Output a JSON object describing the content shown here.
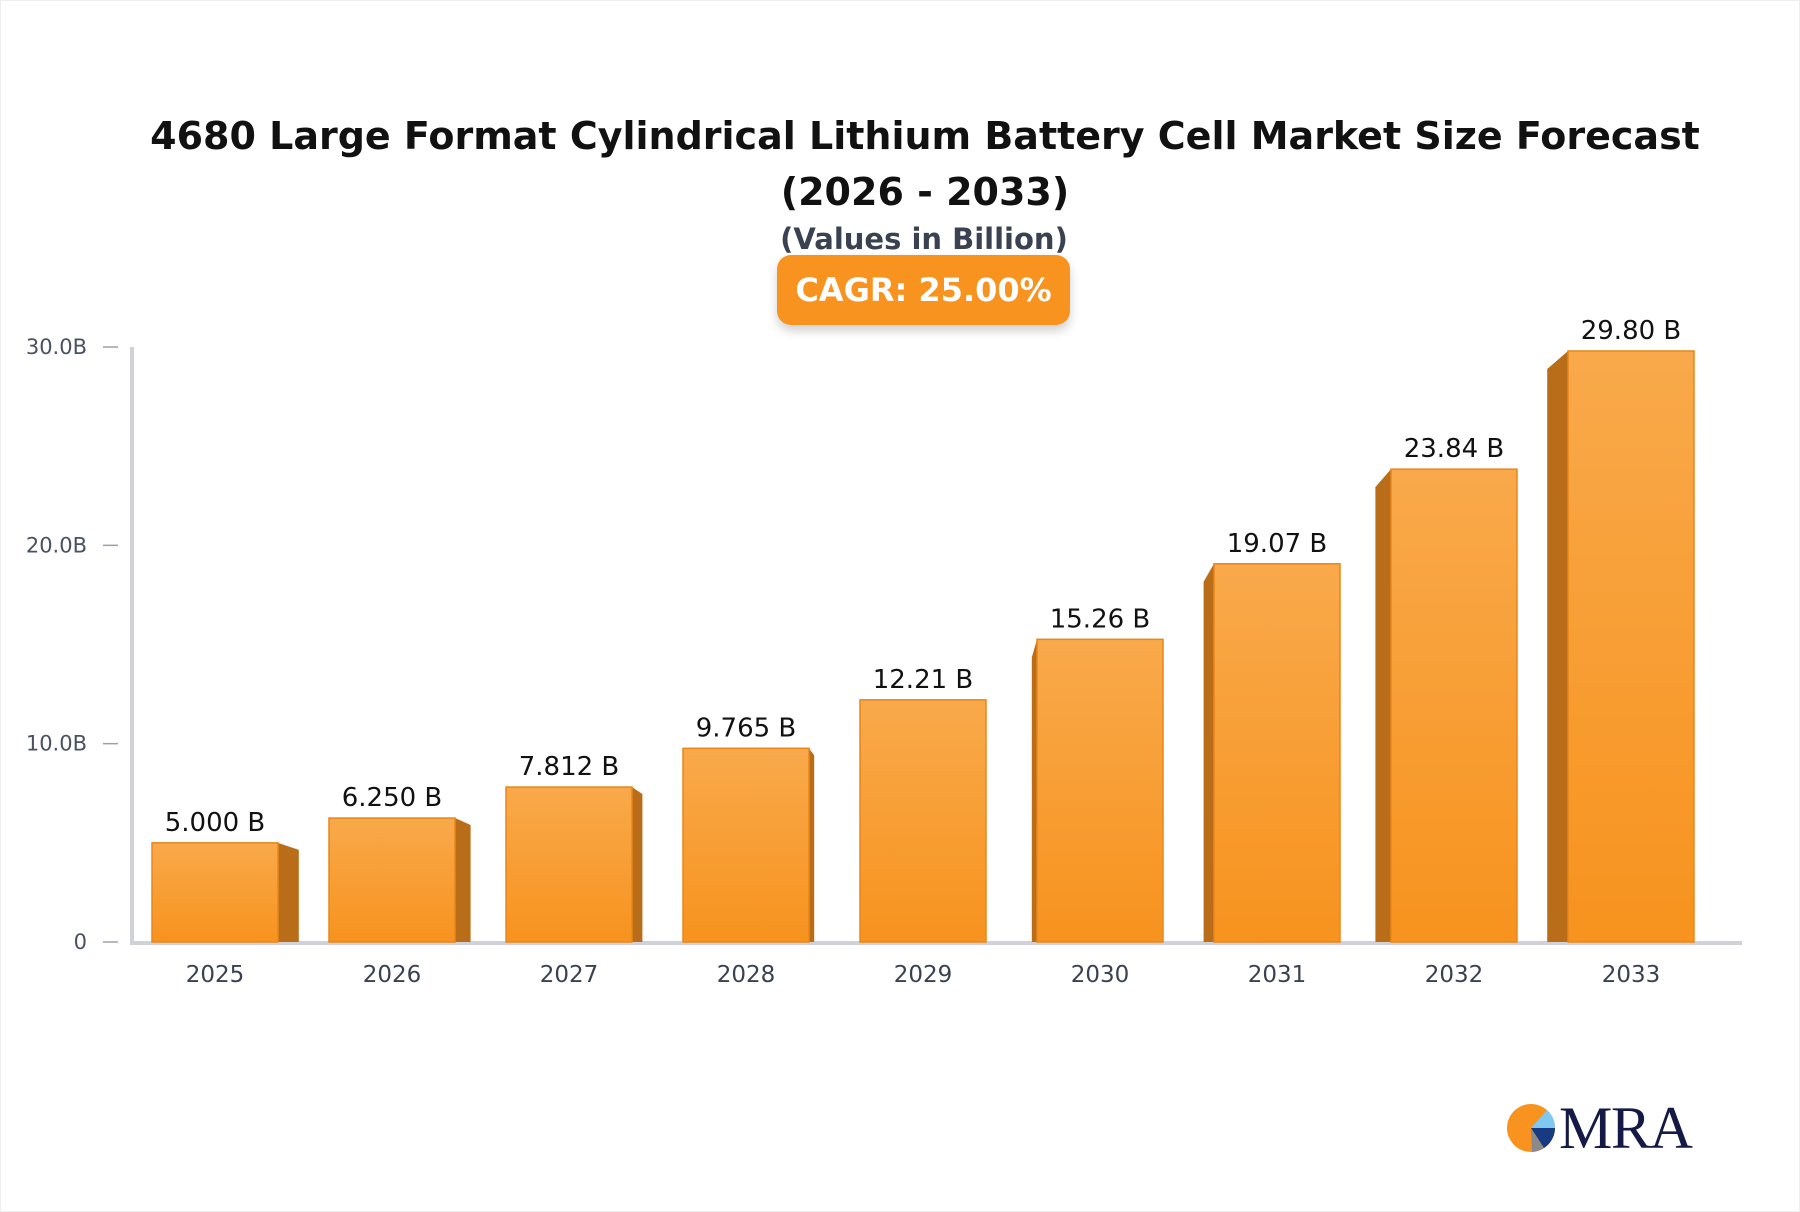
{
  "chart_data": {
    "type": "bar",
    "title": "4680 Large Format Cylindrical Lithium Battery Cell Market Size Forecast (2026 - 2033)",
    "subtitle": "(Values in Billion)",
    "annotation": "CAGR: 25.00%",
    "categories": [
      "2025",
      "2026",
      "2027",
      "2028",
      "2029",
      "2030",
      "2031",
      "2032",
      "2033"
    ],
    "values": [
      5.0,
      6.25,
      7.812,
      9.765,
      12.21,
      15.26,
      19.07,
      23.84,
      29.8
    ],
    "data_labels": [
      "5.000 B",
      "6.250 B",
      "7.812 B",
      "9.765 B",
      "12.21 B",
      "15.26 B",
      "19.07 B",
      "23.84 B",
      "29.80 B"
    ],
    "ylim": [
      0,
      30
    ],
    "yticks": [
      0,
      10,
      20,
      30
    ],
    "ytick_labels": [
      "0",
      "10.0B",
      "20.0B",
      "30.0B"
    ],
    "grid": false,
    "colors": {
      "bar_top": "#f9a94b",
      "bar_bottom": "#f7931e",
      "bar_side": "#b96d18",
      "axis": "#d0d2d8"
    }
  },
  "logo": {
    "text": "MRA"
  }
}
